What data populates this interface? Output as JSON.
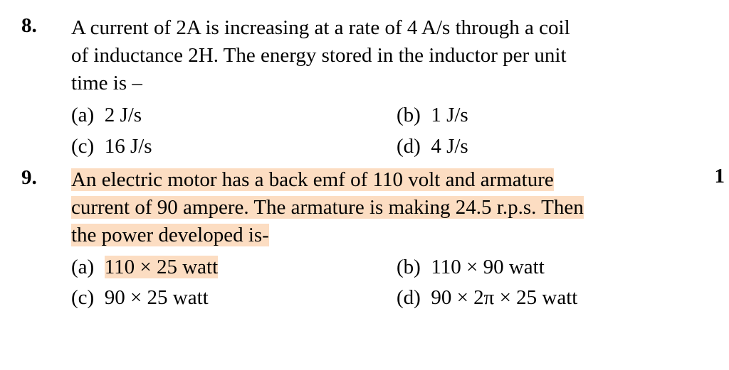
{
  "questions": [
    {
      "number": "8.",
      "text_lines": [
        "A current of 2A is increasing at a rate of 4 A/s through a coil",
        "of inductance 2H. The energy stored in the inductor per unit",
        "time is –"
      ],
      "highlighted": false,
      "options": {
        "a": {
          "label": "(a)",
          "text": "2 J/s",
          "highlighted": false
        },
        "b": {
          "label": "(b)",
          "text": "1 J/s",
          "highlighted": false
        },
        "c": {
          "label": "(c)",
          "text": "16 J/s",
          "highlighted": false
        },
        "d": {
          "label": "(d)",
          "text": "4 J/s",
          "highlighted": false
        }
      }
    },
    {
      "number": "9.",
      "text_lines": [
        "An electric motor has a back emf of 110 volt and armature",
        "current of 90 ampere. The armature is making 24.5 r.p.s. Then",
        "the power developed is-"
      ],
      "highlighted": true,
      "options": {
        "a": {
          "label": "(a)",
          "text": "110 × 25 watt",
          "highlighted": true
        },
        "b": {
          "label": "(b)",
          "text": "110 × 90 watt",
          "highlighted": false
        },
        "c": {
          "label": "(c)",
          "text": "90 × 25 watt",
          "highlighted": false
        },
        "d": {
          "label": "(d)",
          "text": "90 × 2π × 25 watt",
          "highlighted": false
        }
      }
    }
  ],
  "highlight_color": "#fcddc2",
  "side_marker": "1",
  "text_color": "#000000",
  "background_color": "#ffffff",
  "font_size": 29
}
